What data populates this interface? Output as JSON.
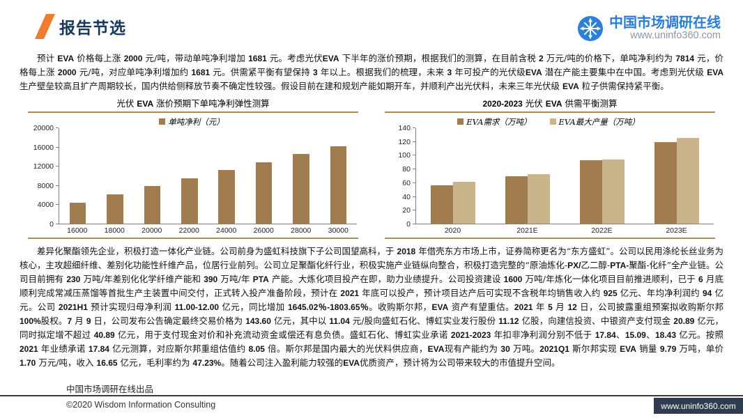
{
  "header": {
    "title": "报告节选",
    "brand_name": "中国市场调研在线",
    "brand_url": "www.uninfo360.com"
  },
  "paragraphs": [
    "预计 EVA 价格每上涨 2000 元/吨，带动单吨净利增加 1681 元。考虑光伏EVA 下半年的涨价预期，根据我们的测算，在目前含税 2 万元/吨的价格下，单吨净利约为 7814 元，价格每上涨 2000 元/吨，对应单吨净利增加约 1681 元。供需紧平衡有望保持 3 年以上。根据我们的梳理，未来 3 年可投产的光伏级EVA 潜在产能主要集中在中国。考虑到光伏级 EVA 生产壁垒较高且扩产周期较长，国内供给侧释放节奏不确定性较强。假设目前在建和规划产能如期开车，并顺利产出光伏料，未来三年光伏级 EVA 粒子供需保持紧平衡。",
    "差异化聚酯领先企业，积极打造一体化产业链。公司前身为盛虹科技旗下子公司国望高科，于 2018 年借壳东方市场上市，证券简称更名为“东方盛虹”。公司以民用涤纶长丝业务为核心，主攻超细纤维、差别化功能性纤维产品，位居行业前列。公司立足聚酯化纤行业，积极实施产业链纵向整合，积极打造完整的“原油炼化-PX/乙二醇-PTA-聚酯-化纤”全产业链。公司目前拥有 230 万吨/年差别化化学纤维产能和 390 万吨/年 PTA 产能。大炼化项目投产在即，助力业绩提升。公司投资建设 1600 万吨/年炼化一体化项目目前推进顺利，已于 6 月底顺利完成常减压蒸馏等首批生产主装置中间交付，正式转入投产准备阶段，预计在 2021 年底可以投产，预计项目达产后可实现不含税年均销售收入约 925 亿元、年均净利润约 94 亿元。公司 2021H1 预计实现归母净利润 11.00-12.00 亿元，同比增加 1645.02％-1803.65％。收购斯尔邦，EVA 资产有望重估。2021 年 5 月 12 日，公司披露重组预案拟收购斯尔邦 100%股权。7 月 9 日，公司发布公告确定最终交易价格为 143.60 亿元，其中以 11.04 元/股向盛虹石化、博虹实业发行股份 11.12 亿股，向建信投资、中银资产支付现金 20.89 亿元，同时拟定增不超过 40.89 亿元，用于支付现金对价和补充流动资金或偿还有息负债。盛虹石化、博虹实业承诺 2021-2023 年扣非净利润分别不低于 17.84、15.09、18.43 亿元。按照 2021 年业绩承诺 17.84 亿元测算，对应斯尔邦重组估值约 8.05 倍。斯尔邦是国内最大的光伏料供应商，EVA现有产能约为 30 万吨。2021Q1 斯尔邦实现 EVA 销量 9.79 万吨，单价 1.70 万元/吨，收入 16.65 亿元，毛利率约为 47.23%。随着公司注入盈利能力较强的EVA优质资产，预计将为公司带来较大的市值提升空间。"
  ],
  "chart_data": [
    {
      "type": "bar",
      "title": "光伏 EVA 涨价预期下单吨净利弹性测算",
      "categories": [
        "16000",
        "18000",
        "20000",
        "22000",
        "24000",
        "26000",
        "28000",
        "30000"
      ],
      "series": [
        {
          "name": "单吨净利（元）",
          "color": "#A17C4F",
          "values": [
            4452,
            6133,
            7814,
            9495,
            11176,
            12857,
            14538,
            16219
          ]
        }
      ],
      "xlabel": "",
      "ylabel": "",
      "ylim": [
        0,
        20000
      ],
      "yticks": [
        0,
        4000,
        8000,
        12000,
        16000,
        20000
      ],
      "grid": false,
      "legend_position": "top"
    },
    {
      "type": "bar",
      "title": "2020-2023 光伏 EVA 供需平衡测算",
      "categories": [
        "2020",
        "2021E",
        "2022E",
        "2023E"
      ],
      "series": [
        {
          "name": "EVA需求（万吨）",
          "color": "#A17C4F",
          "values": [
            56,
            70,
            93,
            120
          ]
        },
        {
          "name": "EVA最大产量（万吨）",
          "color": "#C9B48C",
          "values": [
            61,
            73,
            94,
            126
          ]
        }
      ],
      "xlabel": "",
      "ylabel": "",
      "ylim": [
        0,
        140
      ],
      "yticks": [
        0,
        20,
        40,
        60,
        80,
        100,
        120,
        140
      ],
      "grid": false,
      "legend_position": "top"
    }
  ],
  "footer": {
    "producer": "中国市场调研在线出品",
    "copyright": "©2020 Wisdom Information Consulting",
    "site": "www.uninfo360.com"
  },
  "colors": {
    "accent_orange": "#ED7D31",
    "title_navy": "#17375E",
    "logo_blue": "#2E7FD6",
    "brand_url_gray": "#8C97A3",
    "bar_dark_brown": "#A17C4F",
    "bar_light_tan": "#C9B48C",
    "figure_rule_tan": "#A98C60",
    "footer_box_navy": "#2F3B4E"
  }
}
